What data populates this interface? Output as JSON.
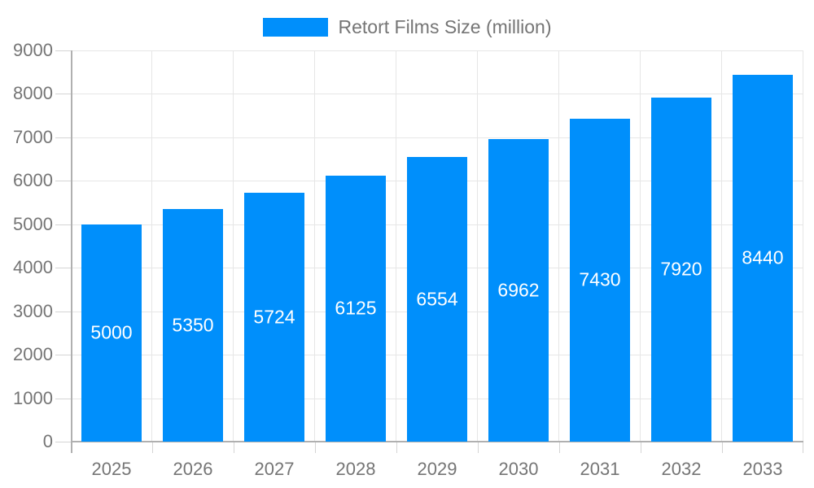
{
  "legend": {
    "label": "Retort Films Size (million)"
  },
  "chart_data": {
    "type": "bar",
    "title": "Retort Films Size (million)",
    "series_name": "Retort Films Size (million)",
    "categories": [
      "2025",
      "2026",
      "2027",
      "2028",
      "2029",
      "2030",
      "2031",
      "2032",
      "2033"
    ],
    "values": [
      5000,
      5350,
      5724,
      6125,
      6554,
      6962,
      7430,
      7920,
      8440
    ],
    "xlabel": "",
    "ylabel": "",
    "ylim": [
      0,
      9000
    ],
    "y_ticks": [
      0,
      1000,
      2000,
      3000,
      4000,
      5000,
      6000,
      7000,
      8000,
      9000
    ],
    "grid": true,
    "legend_position": "top",
    "data_labels": "inside-center"
  },
  "colors": {
    "bar": "#008FFB",
    "grid": "#e6e6e6",
    "axis": "#b0b0b0",
    "tick": "#d4d4d4",
    "text": "#757575",
    "bar_label": "#ffffff",
    "background": "#ffffff"
  }
}
